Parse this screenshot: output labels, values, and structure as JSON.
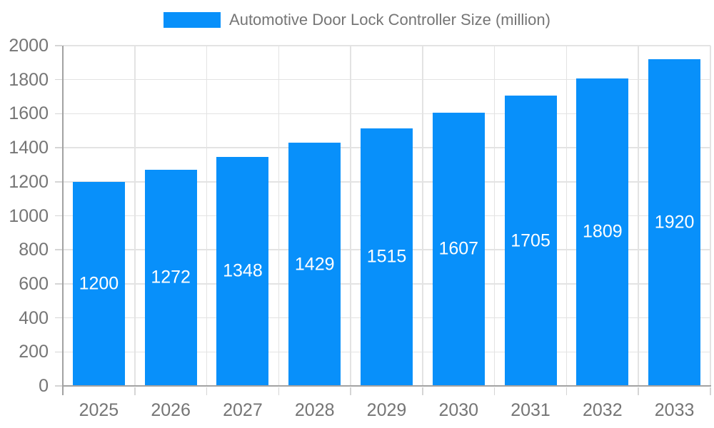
{
  "chart_data": {
    "type": "bar",
    "title": "Automotive Door Lock Controller Size (million)",
    "categories": [
      "2025",
      "2026",
      "2027",
      "2028",
      "2029",
      "2030",
      "2031",
      "2032",
      "2033"
    ],
    "values": [
      1200,
      1272,
      1348,
      1429,
      1515,
      1607,
      1705,
      1809,
      1920
    ],
    "xlabel": "",
    "ylabel": "",
    "ylim": [
      0,
      2000
    ],
    "yticks": [
      0,
      200,
      400,
      600,
      800,
      1000,
      1200,
      1400,
      1600,
      1800,
      2000
    ],
    "grid": true,
    "legend_position": "top",
    "data_labels": "inside-center",
    "colors": {
      "bar": "#0890FA",
      "bar_label": "#FFFFFF",
      "axis_text": "#757575",
      "grid_line": "#E3E3E3",
      "axis_line": "#A2A2A2",
      "tick": "#D5D5D5",
      "background": "#FFFFFF"
    }
  }
}
